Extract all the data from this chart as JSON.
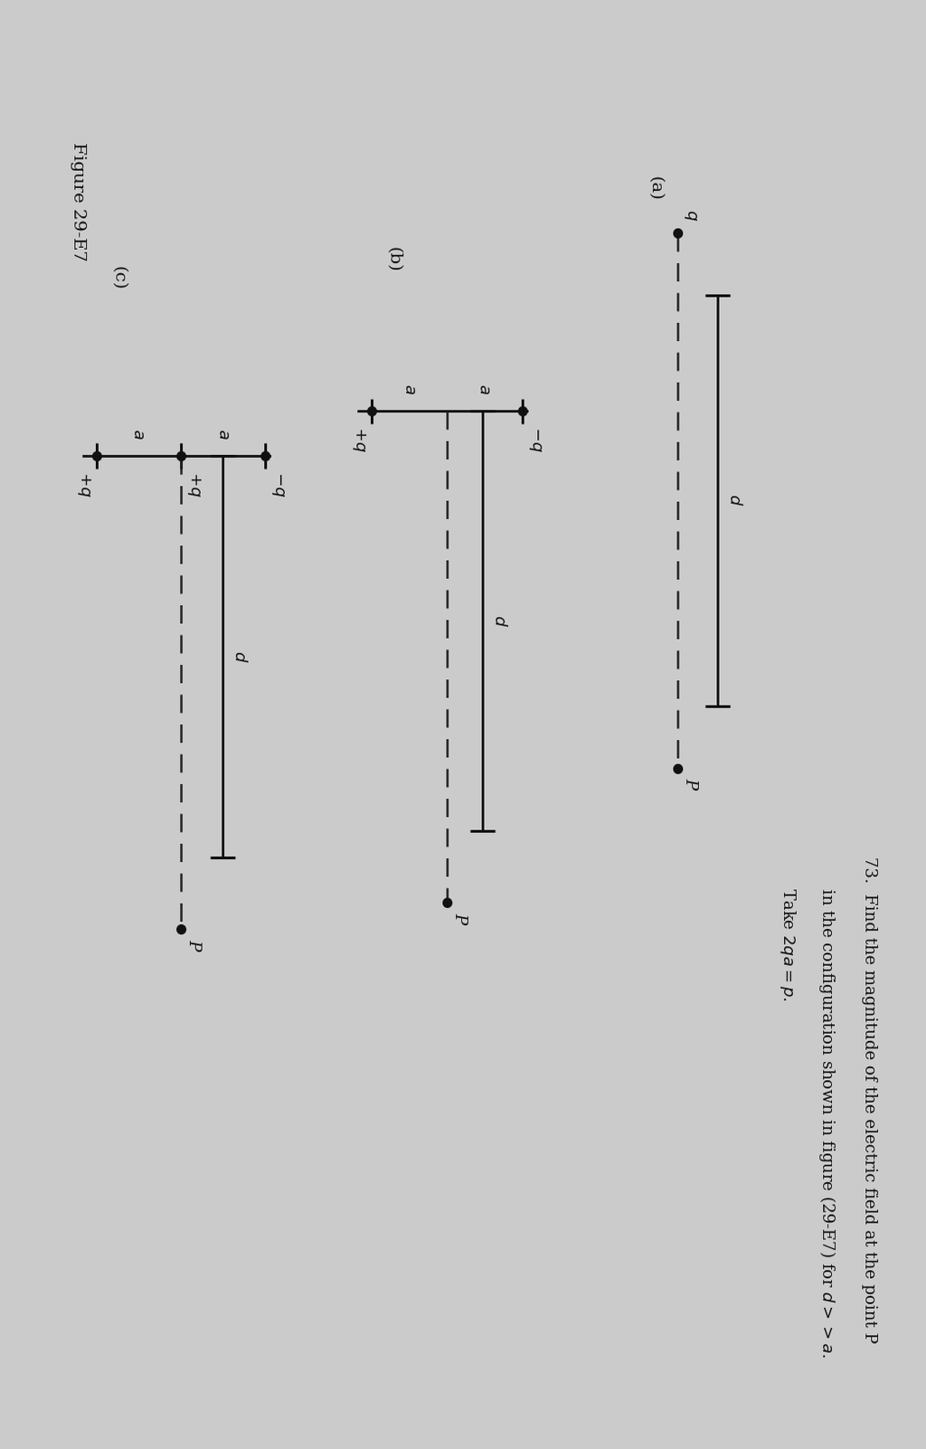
{
  "bg_color": "#cbcbcb",
  "text_color": "#111111",
  "line_color": "#111111",
  "dash_color": "#222222",
  "problem_lines": [
    "73.  Find the magnitude of the electric field at the point P",
    "      in the configuration shown in figure (29-E7) for d >> a.",
    "      Take 2qa = p."
  ],
  "fig_label": "Figure 29-E7",
  "diag_a": {
    "label": "(a)",
    "q_label": "q",
    "P_label": "P",
    "d_label": "d"
  },
  "diag_b": {
    "label": "(b)",
    "top_charge": "-q",
    "bot_charge": "+q",
    "P_label": "P",
    "d_label": "d",
    "a_label": "a"
  },
  "diag_c": {
    "label": "(c)",
    "top_charge": "-q",
    "mid_charge": "+q",
    "bot_charge": "+q",
    "P_label": "P",
    "d_label": "d",
    "a_label": "a"
  }
}
